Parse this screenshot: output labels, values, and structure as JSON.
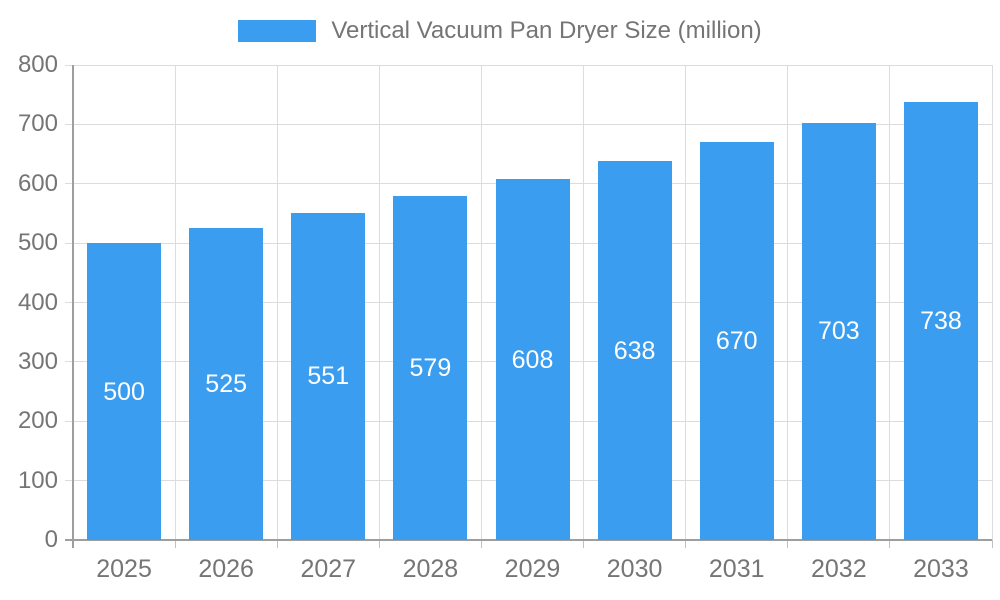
{
  "chart_data": {
    "type": "bar",
    "title": "Vertical Vacuum Pan Dryer Size (million)",
    "categories": [
      "2025",
      "2026",
      "2027",
      "2028",
      "2029",
      "2030",
      "2031",
      "2032",
      "2033"
    ],
    "values": [
      500,
      525,
      551,
      579,
      608,
      638,
      670,
      703,
      738
    ],
    "xlabel": "",
    "ylabel": "",
    "ylim": [
      0,
      800
    ],
    "ytick_step": 100,
    "ytick_labels": [
      "0",
      "100",
      "200",
      "300",
      "400",
      "500",
      "600",
      "700",
      "800"
    ],
    "grid": true,
    "legend_position": "top",
    "bar_value_labels_shown": true,
    "colors": {
      "bar": "#3A9DEF",
      "bar_value_text": "#ffffff",
      "axis_text": "#757575",
      "grid_line": "#dcdcdc",
      "axis_line": "#9e9e9e",
      "tick_mark": "#c0c0c0",
      "background": "#ffffff"
    }
  }
}
